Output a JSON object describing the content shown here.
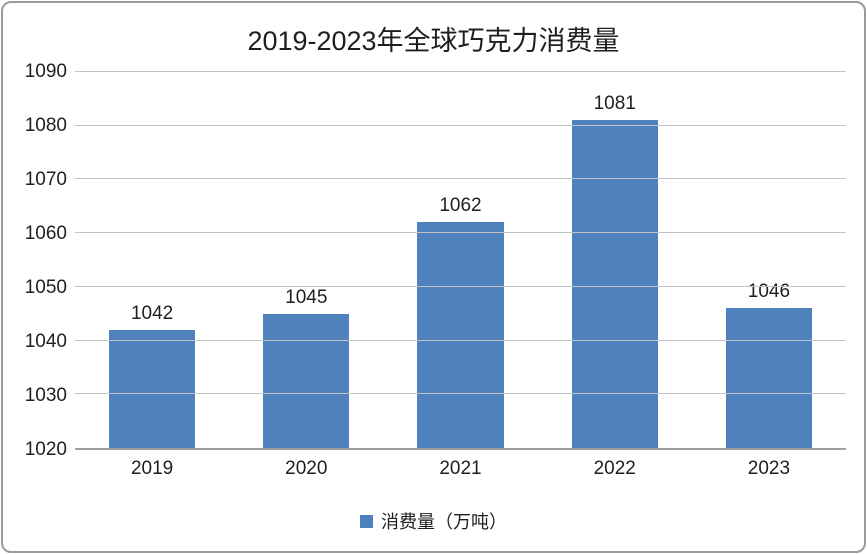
{
  "chart_data": {
    "type": "bar",
    "title": "2019-2023年全球巧克力消费量",
    "categories": [
      "2019",
      "2020",
      "2021",
      "2022",
      "2023"
    ],
    "series": [
      {
        "name": "消费量（万吨）",
        "values": [
          1042,
          1045,
          1062,
          1081,
          1046
        ]
      }
    ],
    "data_labels": [
      "1042",
      "1045",
      "1062",
      "1081",
      "1046"
    ],
    "xlabel": "",
    "ylabel": "",
    "ylim": [
      1020,
      1090
    ],
    "ytick_step": 10,
    "ytick_labels": [
      "1020",
      "1030",
      "1040",
      "1050",
      "1060",
      "1070",
      "1080",
      "1090"
    ],
    "grid": true,
    "legend_position": "bottom",
    "colors": {
      "bar": "#4F81BD",
      "gridline": "#C3C3C3",
      "axis_line": "#9E9E9E",
      "text": "#1F1F1F",
      "frame_border": "#9B9B9B",
      "background": "#FFFFFF"
    }
  }
}
